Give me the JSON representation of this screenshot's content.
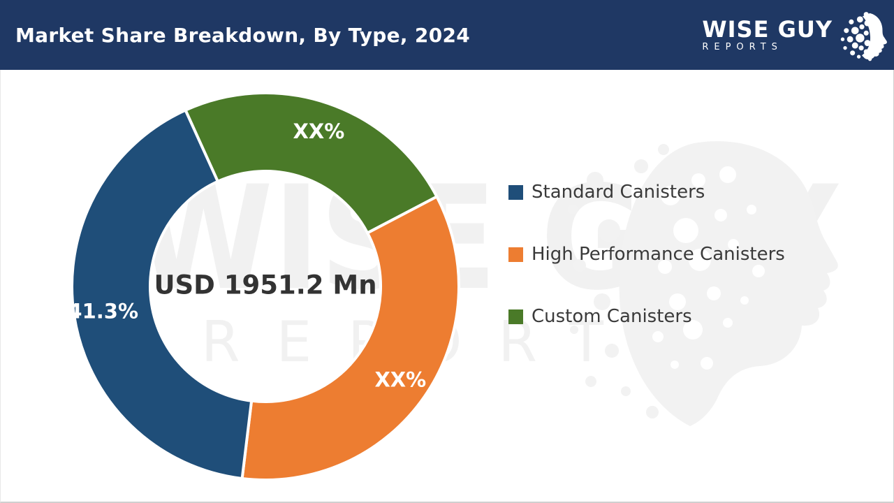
{
  "header": {
    "title": "Market Share Breakdown, By Type, 2024"
  },
  "brand": {
    "logo_line1": "WISE GUY",
    "logo_line2": "REPORTS"
  },
  "watermark": {
    "line1": "WISE GUY",
    "line2": "REPORTS"
  },
  "colors": {
    "header_bg": "#1f3864",
    "blue": "#1F4E79",
    "orange": "#ED7D31",
    "green": "#4A7A28",
    "center_text": "#333333",
    "watermark": "#f1f1f1"
  },
  "chart_data": {
    "type": "pie",
    "subtype": "donut",
    "title": "Market Share Breakdown, By Type, 2024",
    "center_label": "USD 1951.2 Mn",
    "legend_position": "right",
    "start_angle_deg": -24.4,
    "draw_order": [
      2,
      1,
      0
    ],
    "segments": [
      {
        "label": "Standard Canisters",
        "display_value": "41.3%",
        "pct": 41.3,
        "color": "#1F4E79"
      },
      {
        "label": "High Performance Canisters",
        "display_value": "XX%",
        "pct": 34.6,
        "color": "#ED7D31"
      },
      {
        "label": "Custom Canisters",
        "display_value": "XX%",
        "pct": 24.1,
        "color": "#4A7A28"
      }
    ]
  }
}
